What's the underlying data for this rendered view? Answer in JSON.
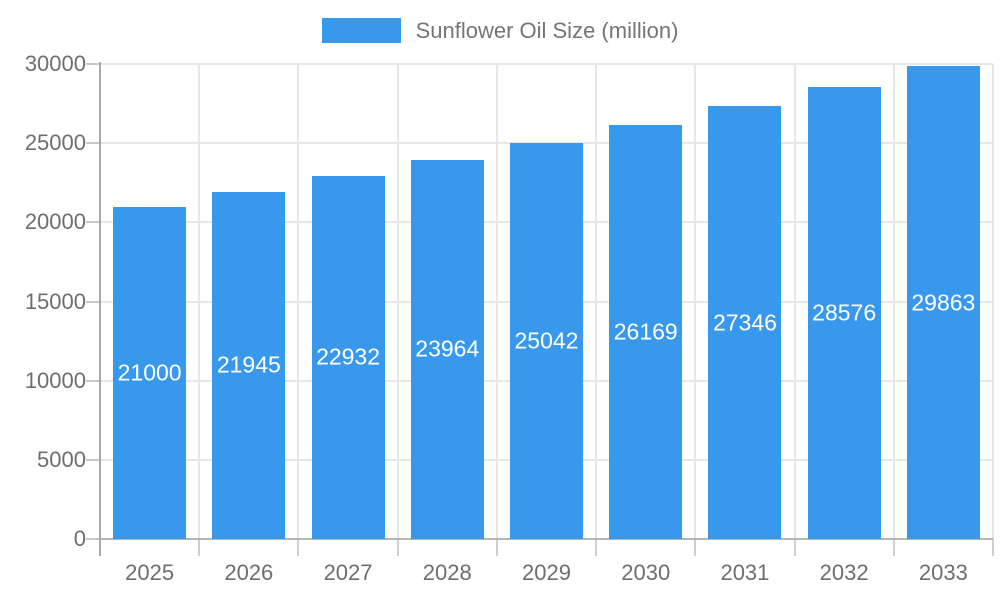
{
  "legend": {
    "label": "Sunflower Oil Size (million)",
    "swatch_color": "#3899EC"
  },
  "chart_data": {
    "type": "bar",
    "title": "Sunflower Oil Size (million)",
    "categories": [
      "2025",
      "2026",
      "2027",
      "2028",
      "2029",
      "2030",
      "2031",
      "2032",
      "2033"
    ],
    "values": [
      21000,
      21945,
      22932,
      23964,
      25042,
      26169,
      27346,
      28576,
      29863
    ],
    "xlabel": "",
    "ylabel": "",
    "ylim": [
      0,
      30000
    ],
    "yticks": [
      0,
      5000,
      10000,
      15000,
      20000,
      25000,
      30000
    ],
    "grid": true,
    "legend_position": "top-center",
    "colors": {
      "bar": "#3899EC",
      "value_label": "#ffffff",
      "grid_line": "#e7e7e7",
      "axis_line": "#a9a9a9",
      "tick": "#cfcfcf",
      "axis_text": "#6e6e6e",
      "legend_text": "#757575"
    }
  }
}
